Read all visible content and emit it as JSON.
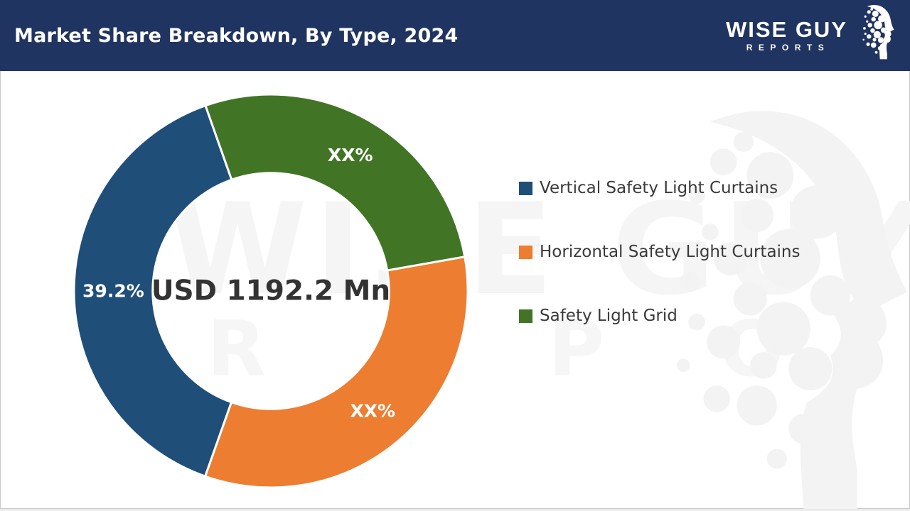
{
  "header": {
    "title": "Market Share Breakdown, By Type, 2024",
    "logo_line1": "WISE GUY",
    "logo_line2": "REPORTS",
    "bg_color": "#203461"
  },
  "chart_data": {
    "type": "pie",
    "subtype": "donut",
    "title": "Market Share Breakdown, By Type, 2024",
    "center_label": "USD 1192.2 Mn",
    "categories": [
      "Vertical Safety Light Curtains",
      "Horizontal Safety Light Curtains",
      "Safety Light Grid"
    ],
    "values": [
      39.2,
      33.2,
      27.6
    ],
    "slice_labels": [
      "39.2%",
      "XX%",
      "XX%"
    ],
    "colors": [
      "#1F4E79",
      "#ED7D31",
      "#427426"
    ],
    "start_angle_deg": 109.4,
    "direction": "counterclockwise",
    "inner_radius_ratio": 0.6,
    "legend_position": "right"
  },
  "watermark": {
    "line1": "WISE GUY",
    "line2": "R E P O"
  }
}
